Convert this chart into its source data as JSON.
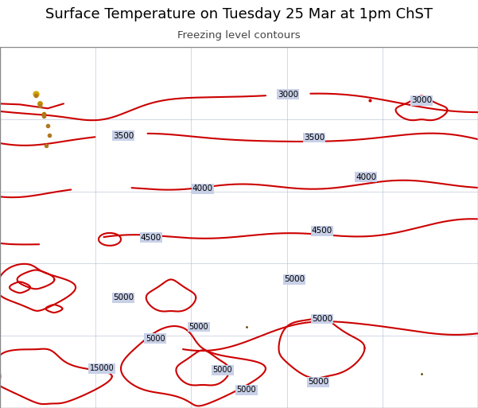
{
  "title": "Surface Temperature on Tuesday 25 Mar at 1pm ChST",
  "subtitle": "Freezing level contours",
  "bg_color": "#c8d0e8",
  "map_bg_color": "#c8d0e8",
  "contour_color": "#cc0000",
  "grid_color": "#b0bbd0",
  "title_fontsize": 13,
  "subtitle_fontsize": 9.5,
  "label_fontsize": 7.5,
  "figsize": [
    6.01,
    5.13
  ],
  "dpi": 100,
  "contour_linewidth": 1.5
}
